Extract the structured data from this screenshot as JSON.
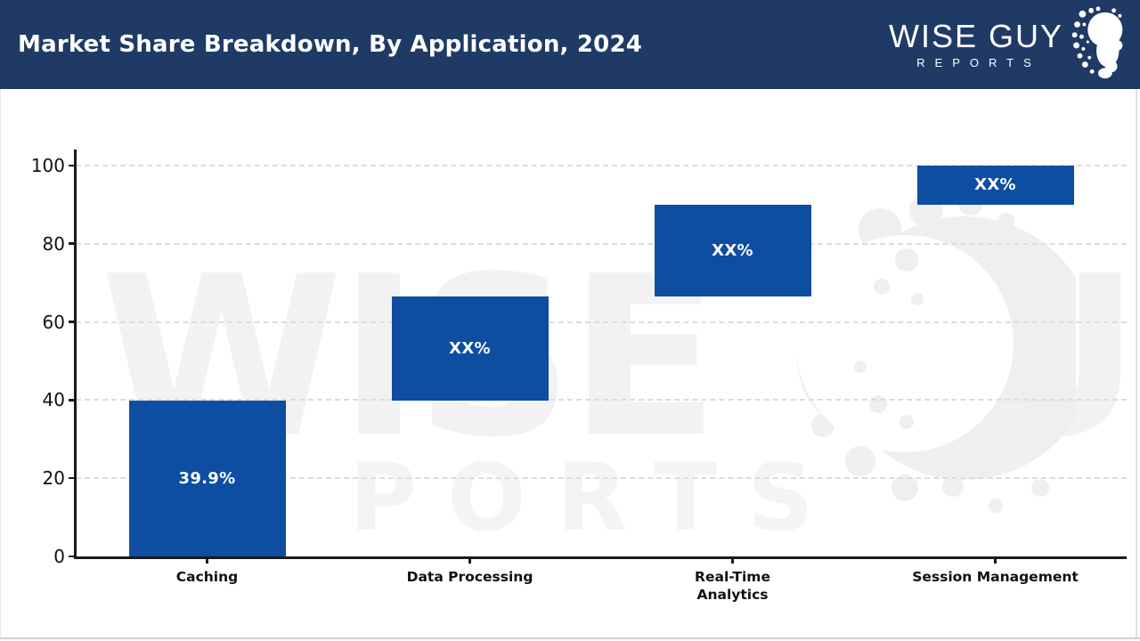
{
  "header": {
    "title": "Market Share Breakdown, By Application, 2024",
    "logo": {
      "line1": "WISE GUY",
      "line2": "REPORTS"
    }
  },
  "watermark": {
    "line1": "WISE GU·Y.",
    "line2": "PORTS"
  },
  "chart_data": {
    "type": "bar",
    "variant": "waterfall",
    "title": "Market Share Breakdown, By Application, 2024",
    "categories": [
      "Caching",
      "Data Processing",
      "Real-Time Analytics",
      "Session Management"
    ],
    "category_lines": [
      [
        "Caching"
      ],
      [
        "Data Processing"
      ],
      [
        "Real-Time",
        "Analytics"
      ],
      [
        "Session Management"
      ]
    ],
    "segments": [
      {
        "category": "Caching",
        "start": 0,
        "end": 39.9,
        "value": 39.9,
        "label": "39.9%"
      },
      {
        "category": "Data Processing",
        "start": 39.9,
        "end": 66.5,
        "value": 26.6,
        "label": "XX%"
      },
      {
        "category": "Real-Time Analytics",
        "start": 66.5,
        "end": 90.0,
        "value": 23.5,
        "label": "XX%"
      },
      {
        "category": "Session Management",
        "start": 90.0,
        "end": 100.0,
        "value": 10.0,
        "label": "XX%"
      }
    ],
    "ylim": [
      0,
      100
    ],
    "yticks": [
      0,
      20,
      40,
      60,
      80,
      100
    ],
    "xlabel": "",
    "ylabel": "",
    "grid": "horizontal-dashed",
    "legend": "none",
    "bar_color": "#0d4da2",
    "bar_label_color": "#ffffff",
    "axis_color": "#1a1a1a",
    "gridline_color": "#dcdcdc",
    "header_bg_color": "#203a66",
    "watermark_color": "#f2f2f2"
  }
}
